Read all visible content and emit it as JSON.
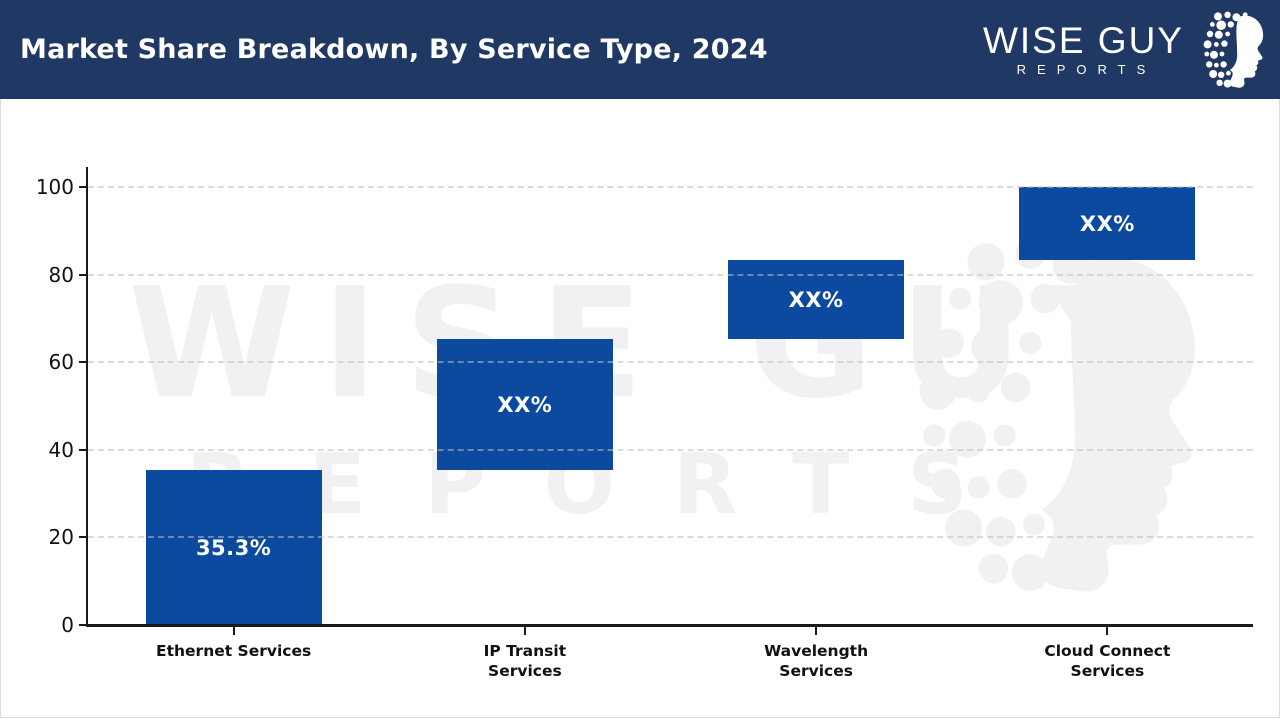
{
  "header": {
    "title": "Market Share Breakdown, By Service Type, 2024",
    "logo_line1": "WISE GUY",
    "logo_line2": "REPORTS"
  },
  "watermark": {
    "line1": "WISE GUY",
    "line2": "REPORTS"
  },
  "chart_data": {
    "type": "bar",
    "subtype": "waterfall-floating-bars",
    "title": "Market Share Breakdown, By Service Type, 2024",
    "categories": [
      {
        "lines": [
          "Ethernet Services"
        ]
      },
      {
        "lines": [
          "IP Transit",
          "Services"
        ]
      },
      {
        "lines": [
          "Wavelength",
          "Services"
        ]
      },
      {
        "lines": [
          "Cloud Connect",
          "Services"
        ]
      }
    ],
    "bars": [
      {
        "label": "35.3%",
        "start": 0,
        "end": 35.3
      },
      {
        "label": "XX%",
        "start": 35.3,
        "end": 65.3
      },
      {
        "label": "XX%",
        "start": 65.3,
        "end": 83.3
      },
      {
        "label": "XX%",
        "start": 83.3,
        "end": 100
      }
    ],
    "yticks": [
      0,
      20,
      40,
      60,
      80,
      100
    ],
    "ylim": [
      0,
      100
    ],
    "xlabel": "",
    "ylabel": "",
    "grid": "horizontal-dashed",
    "legend": "none",
    "bar_color": "#0c4aa0"
  },
  "colors": {
    "header_bg": "#203864",
    "bar": "#0c4aa0",
    "axis": "#1a1a1a",
    "grid": "#d9d9d9",
    "watermark": "#f1f1f4",
    "title_text": "#ffffff"
  }
}
